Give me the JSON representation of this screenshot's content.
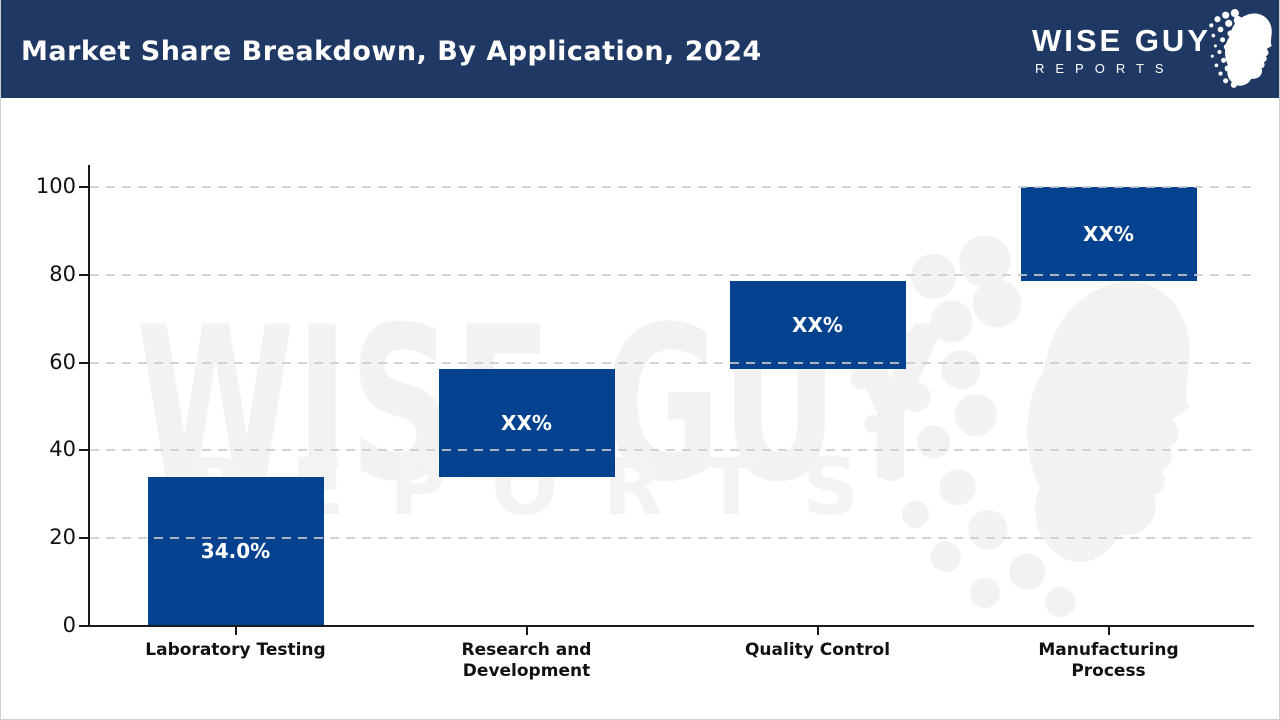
{
  "header": {
    "title": "Market Share Breakdown, By Application, 2024",
    "logo": {
      "line1": "WISE GUY",
      "line2": "REPORTS"
    }
  },
  "watermark": {
    "line1": "WISE GUY",
    "line2": "REPORTS"
  },
  "chart_data": {
    "type": "bar",
    "subtype": "waterfall-segments",
    "title": "Market Share Breakdown, By Application, 2024",
    "xlabel": "",
    "ylabel": "",
    "ylim": [
      0,
      105
    ],
    "yticks": [
      0,
      20,
      40,
      60,
      80,
      100
    ],
    "grid": "horizontal-dashed",
    "legend": "none",
    "bar_color": "#04428f",
    "value_label_color": "#ffffff",
    "categories": [
      "Laboratory Testing",
      "Research and Development",
      "Quality Control",
      "Manufacturing Process"
    ],
    "segments": [
      {
        "category_lines": [
          "Laboratory Testing"
        ],
        "start": 0,
        "end": 34.0,
        "value_label": "34.0%"
      },
      {
        "category_lines": [
          "Research and",
          "Development"
        ],
        "start": 34.0,
        "end": 58.5,
        "value_label": "XX%"
      },
      {
        "category_lines": [
          "Quality Control"
        ],
        "start": 58.5,
        "end": 78.5,
        "value_label": "XX%"
      },
      {
        "category_lines": [
          "Manufacturing",
          "Process"
        ],
        "start": 78.5,
        "end": 100.0,
        "value_label": "XX%"
      }
    ]
  }
}
